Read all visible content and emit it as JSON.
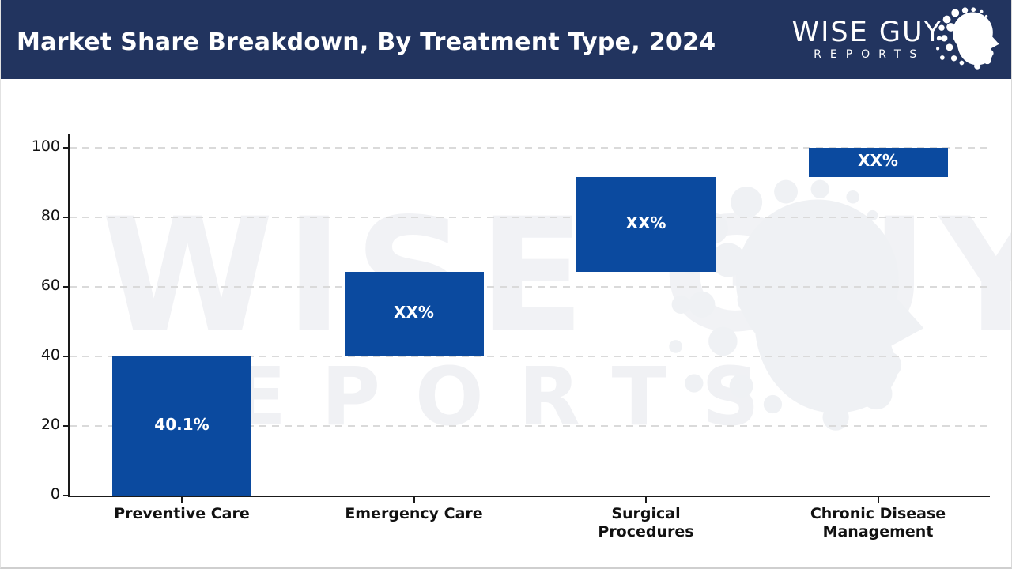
{
  "header": {
    "title": "Market Share Breakdown, By Treatment Type, 2024",
    "logo": {
      "wordmark": "WISE GUY",
      "subtext": "REPORTS"
    }
  },
  "watermark": {
    "line1": "WISE GUY",
    "line2": "REPORTS"
  },
  "chart_data": {
    "type": "bar",
    "variant": "waterfall",
    "title": "Market Share Breakdown, By Treatment Type, 2024",
    "unit": "%",
    "categories": [
      "Preventive Care",
      "Emergency Care",
      "Surgical\nProcedures",
      "Chronic Disease\nManagement"
    ],
    "series": [
      {
        "name": "Market share by treatment type",
        "segments": [
          {
            "category": "Preventive Care",
            "start": 0,
            "end": 40.1,
            "value_label": "40.1%"
          },
          {
            "category": "Emergency Care",
            "start": 40.1,
            "end": 64.4,
            "value_label": "XX%"
          },
          {
            "category": "Surgical Procedures",
            "start": 64.4,
            "end": 91.6,
            "value_label": "XX%"
          },
          {
            "category": "Chronic Disease Management",
            "start": 91.6,
            "end": 100,
            "value_label": "XX%"
          }
        ]
      }
    ],
    "yticks": [
      0,
      20,
      40,
      60,
      80,
      100
    ],
    "ylim": [
      0,
      104
    ],
    "xlabel": "",
    "ylabel": "",
    "grid": "horizontal dashed",
    "legend": "none",
    "bar_color": "#0b4a9f",
    "bar_label_color": "#ffffff",
    "axis_color": "#1a1a1a",
    "grid_color": "#dadada"
  },
  "colors": {
    "header_bg": "#22345f",
    "accent_blue": "#0b4a9f",
    "watermark_gray": "#f0f1f4"
  }
}
